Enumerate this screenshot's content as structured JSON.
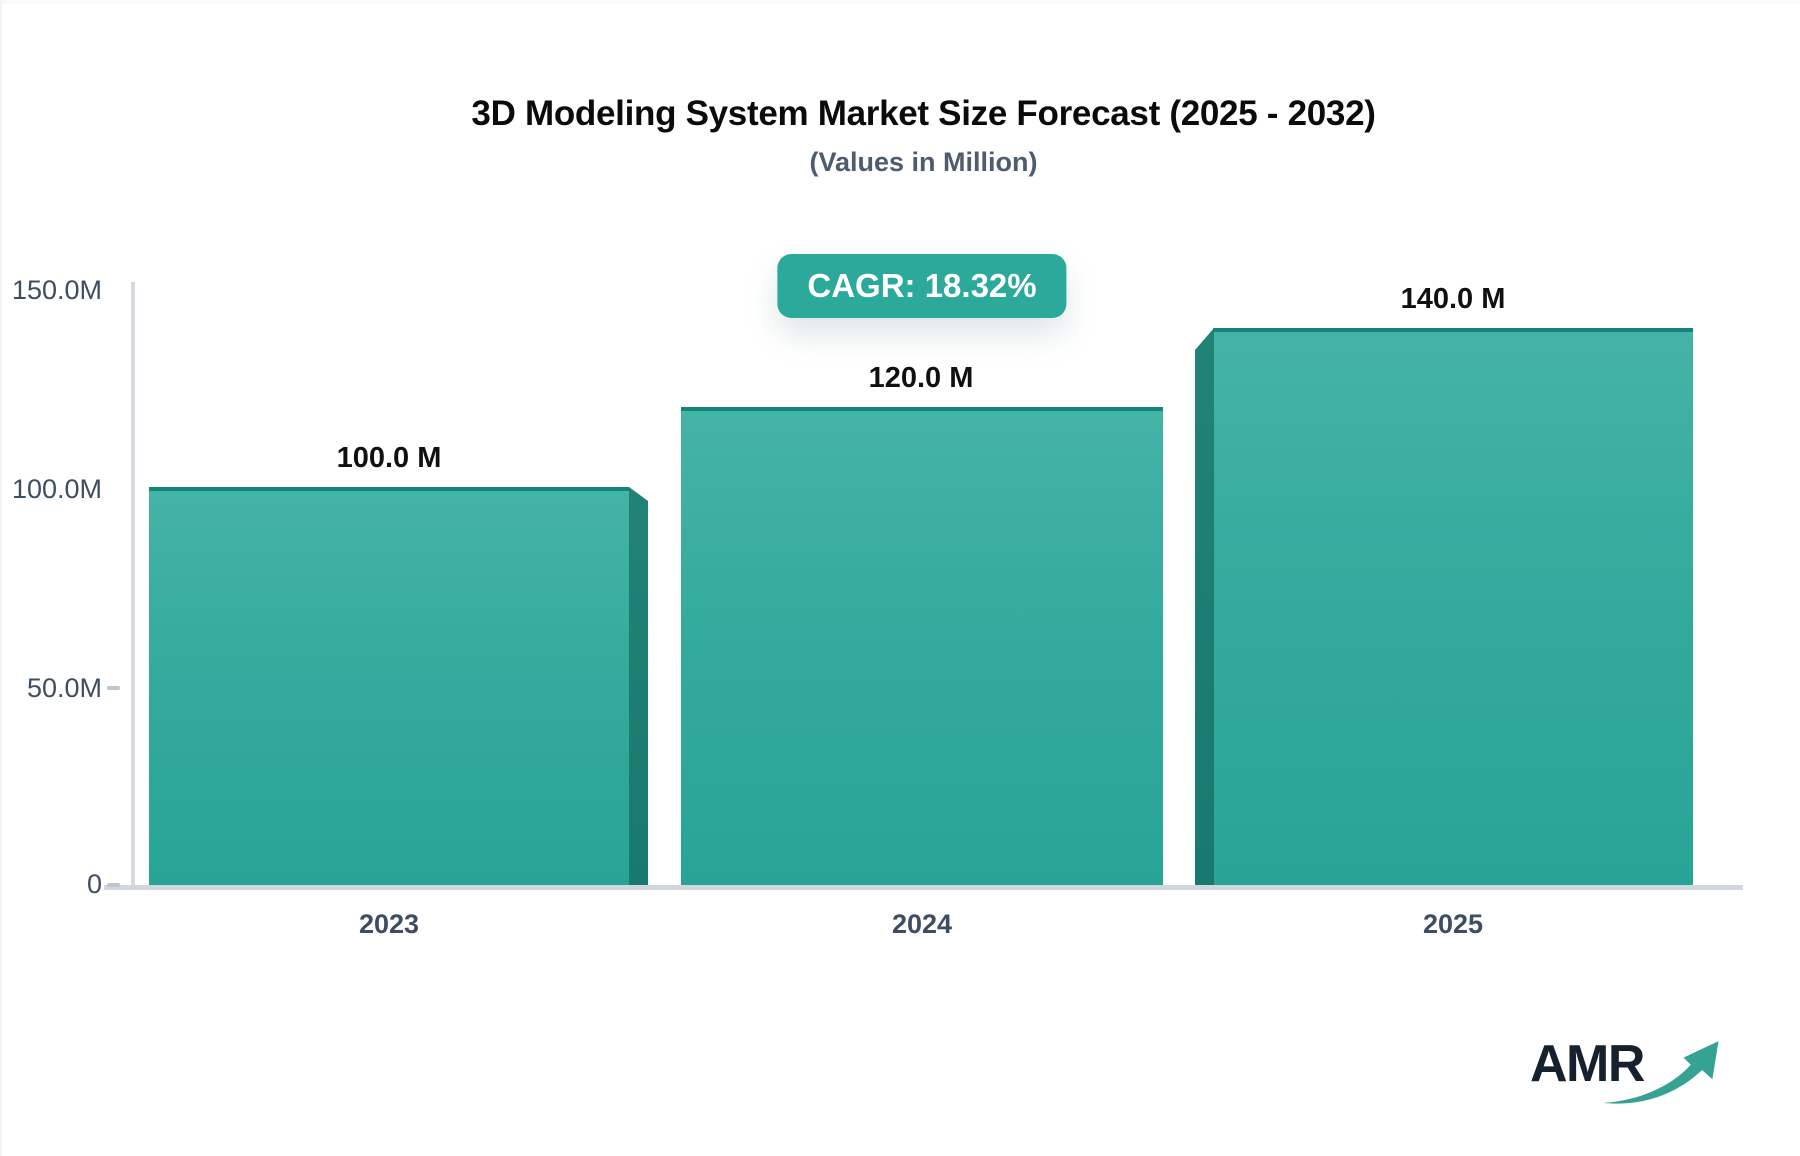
{
  "header": {
    "title": "3D Modeling System Market Size Forecast (2025 - 2032)",
    "subtitle": "(Values in Million)"
  },
  "badge": {
    "label": "CAGR: 18.32%"
  },
  "chart_data": {
    "type": "bar",
    "title": "3D Modeling System Market Size Forecast (2025 - 2032)",
    "subtitle": "(Values in Million)",
    "categories": [
      "2023",
      "2024",
      "2025"
    ],
    "values": [
      100,
      120,
      140
    ],
    "value_labels": [
      "100.0 M",
      "120.0 M",
      "140.0 M"
    ],
    "unit": "Million",
    "ylim": [
      0,
      150
    ],
    "ytick_values": [
      150,
      100,
      50,
      0
    ],
    "ytick_labels": [
      "150.0M",
      "100.0M",
      "50.0M",
      "0"
    ],
    "grid": "off",
    "legend": "none",
    "cagr": "18.32%",
    "colors": {
      "bar_top": "#45b3a5",
      "bar_bottom": "#28a496",
      "bar_top_border": "#12857a",
      "bar_3d_side": "#1f8174",
      "badge_background": "#2ba99b",
      "badge_text": "#ffffff",
      "axis_line": "#d2d7dd",
      "tick_text": "#3e4e62",
      "value_text": "#101010"
    }
  },
  "logo": {
    "text": "AMR"
  }
}
